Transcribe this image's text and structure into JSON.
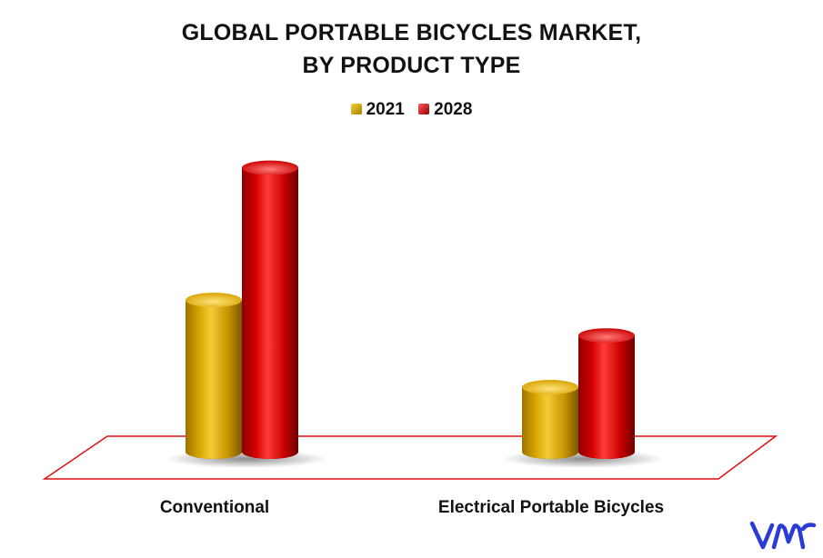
{
  "chart_data": {
    "type": "bar",
    "title_lines": [
      "GLOBAL PORTABLE BICYCLES MARKET,",
      "BY PRODUCT TYPE"
    ],
    "categories": [
      "Conventional",
      "Electrical Portable Bicycles"
    ],
    "series": [
      {
        "name": "2021",
        "values": [
          47,
          20
        ],
        "color": "#d9a300"
      },
      {
        "name": "2028",
        "values": [
          88,
          36
        ],
        "color": "#d40000"
      }
    ],
    "ylim": [
      0,
      100
    ],
    "grid": false,
    "legend_position": "top-center",
    "floor_outline_color": "#e01010"
  },
  "brand": {
    "logo_color": "#2b3bd6"
  }
}
